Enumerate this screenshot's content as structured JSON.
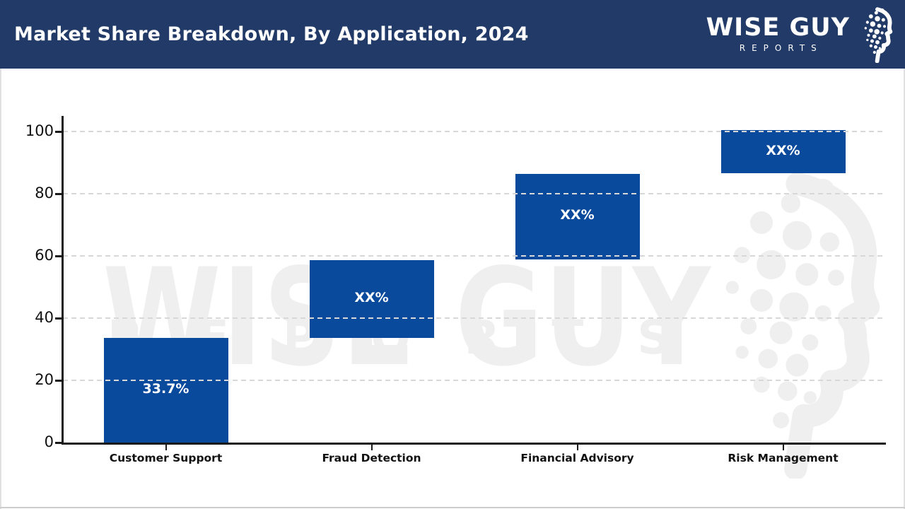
{
  "header": {
    "title": "Market Share Breakdown, By Application, 2024",
    "bg_color": "#213a67",
    "logo": {
      "line1": "WISE GUY",
      "line2": "REPORTS"
    }
  },
  "watermark": {
    "line1": "WISE GUY",
    "line2": "REPORTS"
  },
  "chart_data": {
    "type": "bar",
    "subtype": "waterfall",
    "title": "Market Share Breakdown, By Application, 2024",
    "xlabel": "",
    "ylabel": "",
    "categories": [
      "Customer Support",
      "Fraud Detection",
      "Financial Advisory",
      "Risk Management"
    ],
    "segments": [
      {
        "category": "Customer Support",
        "start": 0,
        "end": 33.7,
        "label": "33.7%"
      },
      {
        "category": "Fraud Detection",
        "start": 33.7,
        "end": 58.7,
        "label": "XX%"
      },
      {
        "category": "Financial Advisory",
        "start": 58.9,
        "end": 86.4,
        "label": "XX%"
      },
      {
        "category": "Risk Management",
        "start": 86.6,
        "end": 100.4,
        "label": "XX%"
      }
    ],
    "yticks": [
      0,
      20,
      40,
      60,
      80,
      100
    ],
    "ylim": [
      0,
      105
    ],
    "bar_color": "#0a4a9c",
    "grid": "horizontal dashed",
    "legend": "none"
  }
}
